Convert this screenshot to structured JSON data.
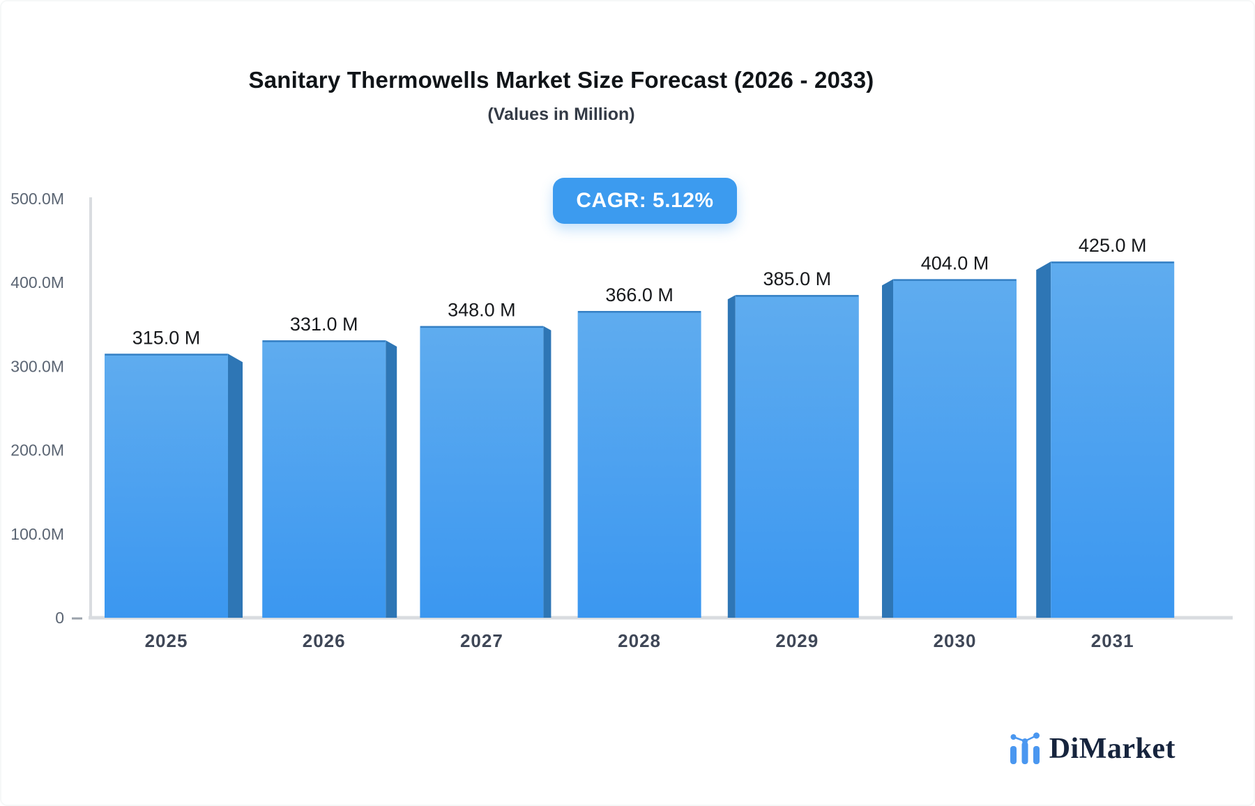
{
  "header": {
    "title": "Sanitary Thermowells Market Size Forecast (2026 - 2033)",
    "subtitle": "(Values in Million)",
    "cagr_badge": "CAGR: 5.12%"
  },
  "chart_data": {
    "type": "bar",
    "title": "Sanitary Thermowells Market Size Forecast (2026 - 2033)",
    "subtitle": "(Values in Million)",
    "categories": [
      "2025",
      "2026",
      "2027",
      "2028",
      "2029",
      "2030",
      "2031"
    ],
    "values": [
      315.0,
      331.0,
      348.0,
      366.0,
      385.0,
      404.0,
      425.0
    ],
    "value_labels": [
      "315.0 M",
      "331.0 M",
      "348.0 M",
      "366.0 M",
      "385.0 M",
      "404.0 M",
      "425.0 M"
    ],
    "cagr_percent": 5.12,
    "xlabel": "",
    "ylabel": "",
    "ylim": [
      0,
      500
    ],
    "yticks": [
      0,
      100,
      200,
      300,
      400,
      500
    ],
    "ytick_labels": [
      "0",
      "100.0M",
      "200.0M",
      "300.0M",
      "400.0M",
      "500.0M"
    ],
    "grid": false,
    "legend": false,
    "bar_style": "3d-extruded, perspective toward center"
  },
  "colors": {
    "bar_front_top": "#5FACEF",
    "bar_front_bottom": "#3B97F0",
    "bar_side": "#2E76B5",
    "bar_top_edge": "#3580C4",
    "badge_bg": "#3C9BEF",
    "badge_text": "#FFFFFF",
    "axis_line": "#D9DCE0",
    "zero_tick": "#9AA2AB",
    "ytick_text": "#5B6573",
    "xtick_text": "#3F4757",
    "value_text": "#17191C",
    "title_text": "#101418",
    "logo_icon": "#4A97F0",
    "logo_text": "#16243D"
  },
  "logo": {
    "text": "DiMarket",
    "icon": "mini-bar-line-chart-icon"
  }
}
